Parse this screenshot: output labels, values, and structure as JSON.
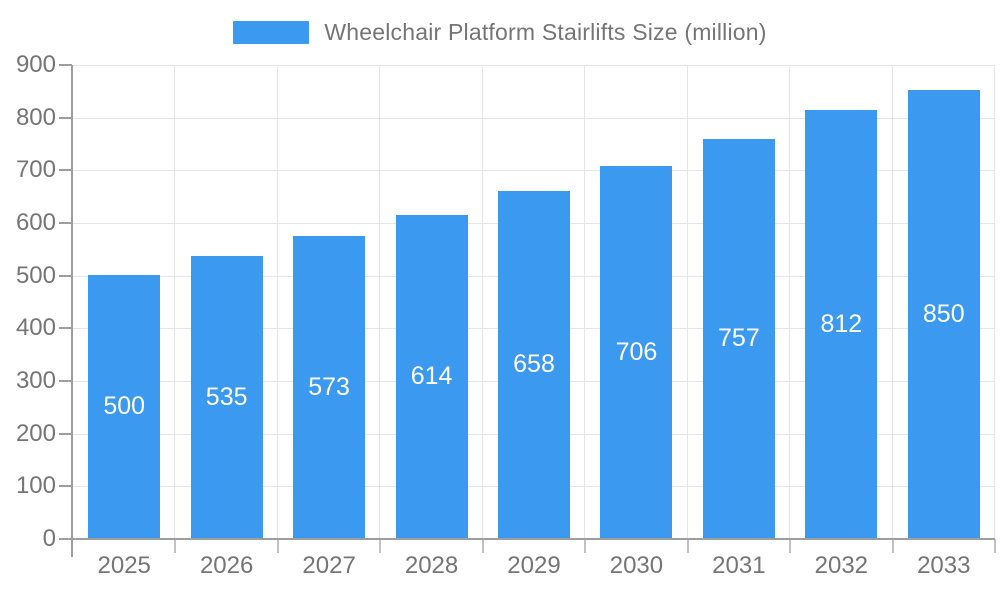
{
  "chart_data": {
    "type": "bar",
    "title": "Wheelchair Platform Stairlifts Size (million)",
    "legend_position": "top-center",
    "categories": [
      "2025",
      "2026",
      "2027",
      "2028",
      "2029",
      "2030",
      "2031",
      "2032",
      "2033"
    ],
    "series": [
      {
        "name": "Wheelchair Platform Stairlifts Size (million)",
        "values": [
          500,
          535,
          573,
          614,
          658,
          706,
          757,
          812,
          850
        ]
      }
    ],
    "xlabel": "",
    "ylabel": "",
    "ylim": [
      0,
      900
    ],
    "ytick_step": 100,
    "grid": true,
    "bar_value_labels_shown": true,
    "colors": {
      "bar": "#3B99F0",
      "bar_label_text": "#ffffff",
      "axis_line": "#9e9e9e",
      "gridline": "#e6e6e6",
      "minor_tick": "#c2c2c2",
      "axis_text": "#757575"
    }
  }
}
